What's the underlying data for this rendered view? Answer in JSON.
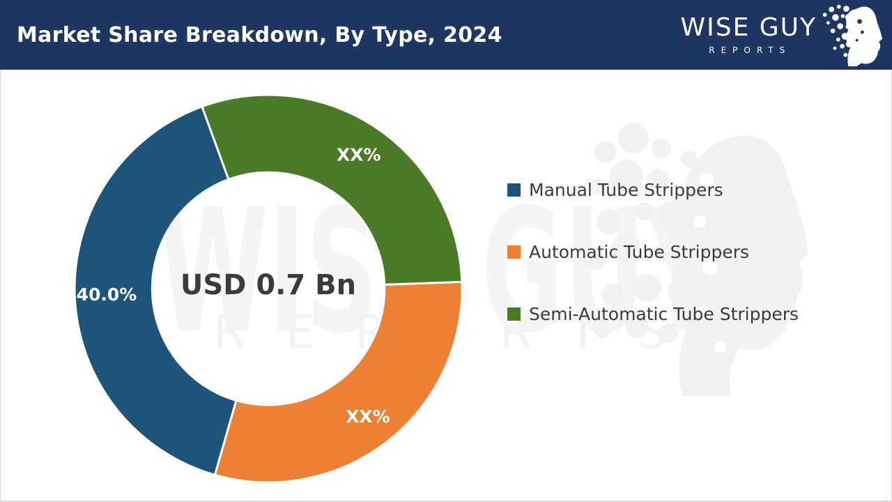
{
  "header": {
    "title": "Market Share Breakdown, By Type, 2024",
    "bg_color": "#1f3562",
    "logo": {
      "wordmark": "WISE GUY",
      "subtext": "REPORTS"
    }
  },
  "watermark": {
    "wordmark": "WISE GUY",
    "subtext": "REPORTS"
  },
  "chart_data": {
    "type": "pie",
    "subtype": "donut",
    "title": "Market Share Breakdown, By Type, 2024",
    "center_label": "USD 0.7 Bn",
    "start_angle_deg": 110,
    "direction": "counterclockwise",
    "inner_radius_ratio": 0.6,
    "legend_position": "right",
    "categories": [
      "Manual Tube Strippers",
      "Automatic Tube Strippers",
      "Semi-Automatic Tube Strippers"
    ],
    "values": [
      40,
      30,
      30
    ],
    "segments": [
      {
        "label": "Manual Tube Strippers",
        "value_pct": 40,
        "display_label": "40.0%",
        "color": "#1f547a"
      },
      {
        "label": "Automatic Tube Strippers",
        "value_pct": 30,
        "display_label": "XX%",
        "color": "#ee8033"
      },
      {
        "label": "Semi-Automatic Tube Strippers",
        "value_pct": 30,
        "display_label": "XX%",
        "color": "#4a7a28"
      }
    ]
  },
  "colors": {
    "header_bg": "#1f3562",
    "panel_border": "#d9d9d9",
    "text_dark": "#3b3b3b",
    "watermark": "#f3f3f3",
    "slice_separator": "#ffffff"
  }
}
